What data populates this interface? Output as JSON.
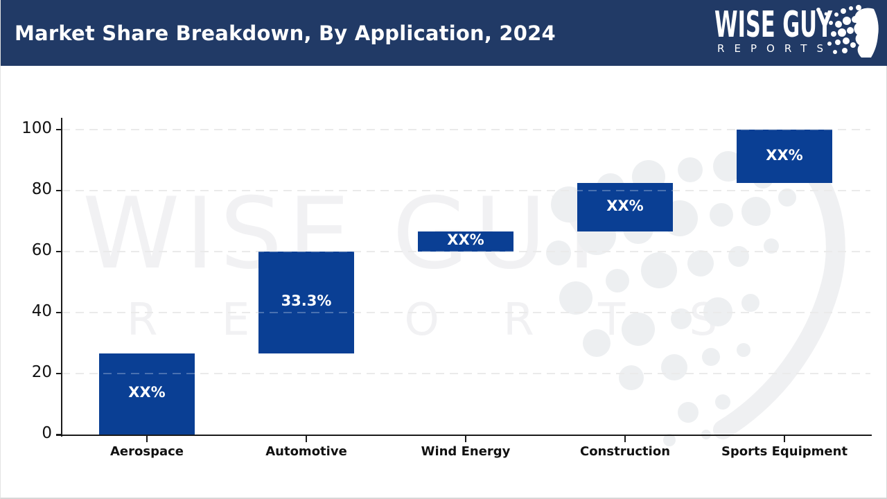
{
  "header": {
    "bg_color": "#213a66",
    "title": "Market Share Breakdown, By Application, 2024",
    "logo": {
      "name": "WISE GUY",
      "sub": "REPORTS"
    }
  },
  "watermark": {
    "text_main": "WISE GUY",
    "text_sub": "R E P O R T S"
  },
  "chart_data": {
    "type": "bar",
    "subtype": "waterfall",
    "title": "Market Share Breakdown, By Application, 2024",
    "categories": [
      "Aerospace",
      "Automotive",
      "Wind Energy",
      "Construction",
      "Sports Equipment"
    ],
    "segments": [
      {
        "category": "Aerospace",
        "start": 0,
        "end": 26.7,
        "value_label": "XX%"
      },
      {
        "category": "Automotive",
        "start": 26.7,
        "end": 60,
        "value_label": "33.3%"
      },
      {
        "category": "Wind Energy",
        "start": 60,
        "end": 66.7,
        "value_label": "XX%"
      },
      {
        "category": "Construction",
        "start": 66.7,
        "end": 82.4,
        "value_label": "XX%"
      },
      {
        "category": "Sports Equipment",
        "start": 82.4,
        "end": 100,
        "value_label": "XX%"
      }
    ],
    "ylim": [
      0,
      100
    ],
    "yticks": [
      0,
      20,
      40,
      60,
      80,
      100
    ],
    "xlabel": "",
    "ylabel": "",
    "grid": "horizontal-dashed",
    "legend": "none",
    "bar_color": "#0a3f94",
    "axis_color": "#1a1a1a"
  }
}
